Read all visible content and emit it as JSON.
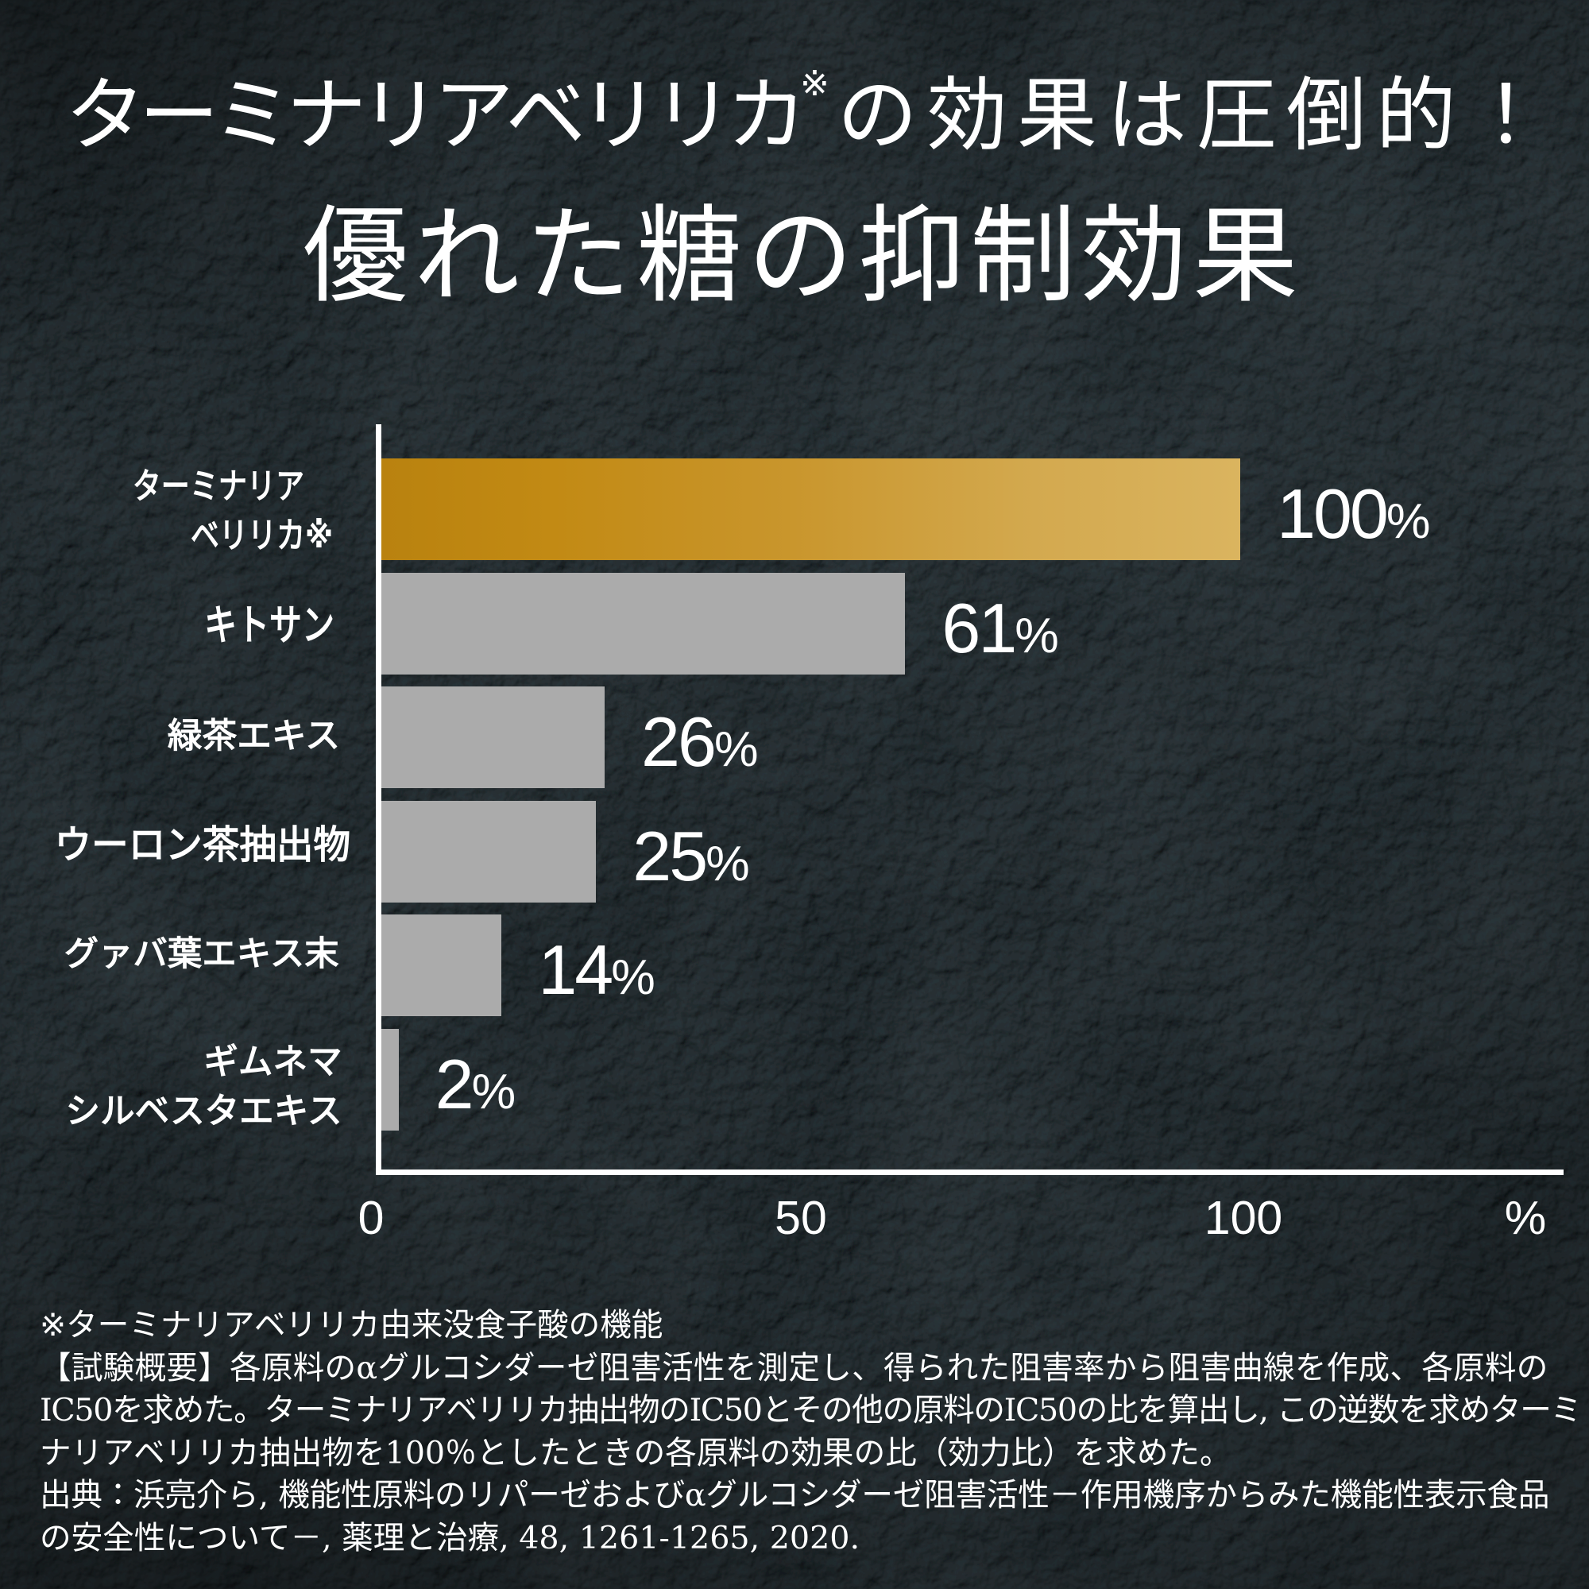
{
  "title": {
    "line1_main": "ターミナリアベリリカ",
    "line1_sup": "※",
    "line1_rest": "の効果は圧倒的！",
    "line2": "優れた糖の抑制効果"
  },
  "chart_data": {
    "type": "bar",
    "orientation": "horizontal",
    "categories": [
      "ターミナリア\nベリリカ※",
      "キトサン",
      "緑茶エキス",
      "ウーロン茶抽出物",
      "グァバ葉エキス末",
      "ギムネマ\nシルベスタエキス"
    ],
    "values": [
      100,
      61,
      26,
      25,
      14,
      2
    ],
    "value_labels": [
      "100%",
      "61%",
      "26%",
      "25%",
      "14%",
      "2%"
    ],
    "xlim": [
      0,
      100
    ],
    "x_ticks": [
      "0",
      "50",
      "100"
    ],
    "x_unit": "%",
    "highlight_index": 0,
    "legend": "none",
    "grid": "off"
  },
  "colors": {
    "background": "#20262a",
    "bar_default": "#ababab",
    "bar_highlight_start": "#aa780f",
    "bar_highlight_end": "#debb6c",
    "text": "#ffffff",
    "axis": "#ffffff"
  },
  "footnotes": {
    "lines": [
      "※ターミナリアベリリカ由来没食子酸の機能",
      "【試験概要】各原料のαグルコシダーゼ阻害活性を測定し、得られた阻害率から阻害曲線を作成、各原料の",
      "IC50を求めた。ターミナリアベリリカ抽出物のIC50とその他の原料のIC50の比を算出し, この逆数を求めターミ",
      "ナリアベリリカ抽出物を100％としたときの各原料の効果の比（効力比）を求めた。",
      "出典：浜亮介ら, 機能性原料のリパーゼおよびαグルコシダーゼ阻害活性－作用機序からみた機能性表示食品",
      "の安全性について－, 薬理と治療, 48, 1261-1265, 2020."
    ]
  }
}
